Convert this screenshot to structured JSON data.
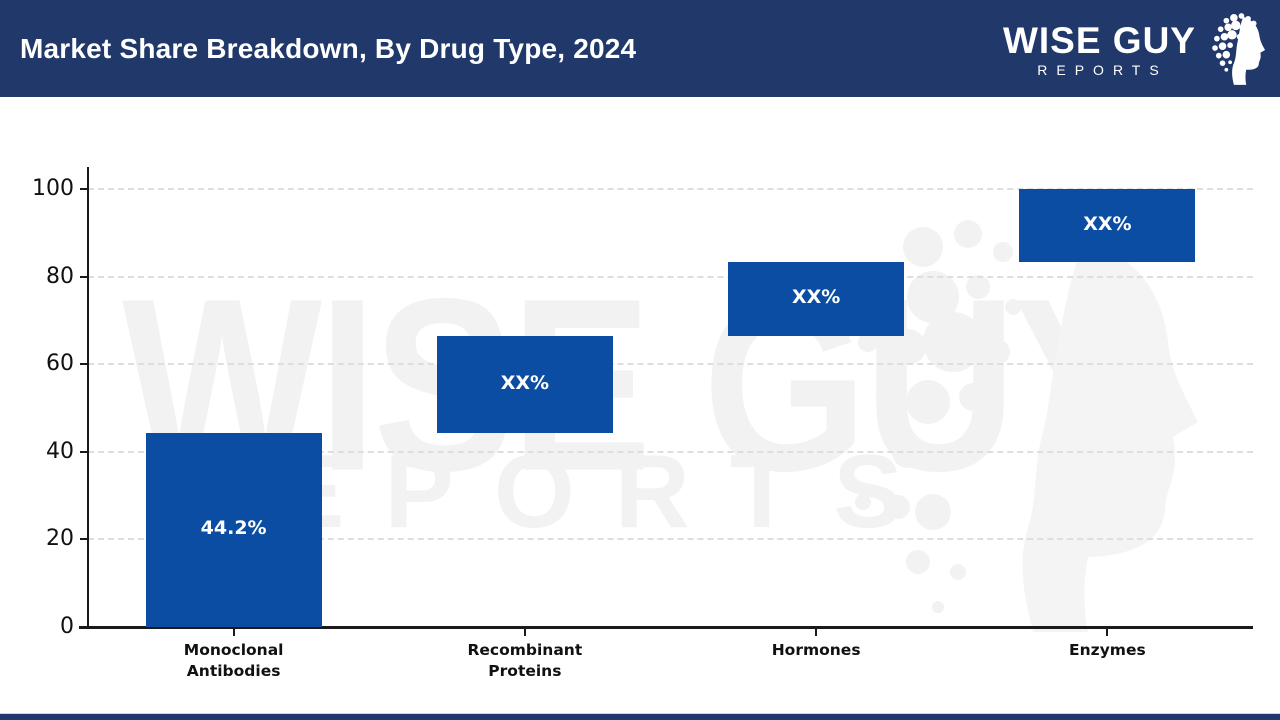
{
  "header": {
    "title": "Market Share Breakdown, By Drug Type, 2024",
    "logo": {
      "name": "WISE GUY",
      "sub": "REPORTS"
    }
  },
  "watermark": {
    "line1": "WISE GUY",
    "line2": "REPORTS"
  },
  "colors": {
    "header_bg": "#21386B",
    "footer_bg": "#21386B",
    "bar": "#0B4DA2",
    "bar_label": "#FFFFFF",
    "grid": "#DEDEDE",
    "axis": "#1A1A1A",
    "watermark": "#F2F2F2"
  },
  "chart_data": {
    "type": "bar",
    "subtype": "waterfall",
    "title": "Market Share Breakdown, By Drug Type, 2024",
    "unit": "%",
    "categories": [
      "Monoclonal Antibodies",
      "Recombinant Proteins",
      "Hormones",
      "Enzymes"
    ],
    "categories_display": [
      "Monoclonal\nAntibodies",
      "Recombinant\nProteins",
      "Hormones",
      "Enzymes"
    ],
    "bars": [
      {
        "category": "Monoclonal Antibodies",
        "start": 0,
        "end": 44.2,
        "label": "44.2%"
      },
      {
        "category": "Recombinant Proteins",
        "start": 44.2,
        "end": 66.5,
        "label": "XX%"
      },
      {
        "category": "Hormones",
        "start": 66.5,
        "end": 83.3,
        "label": "XX%"
      },
      {
        "category": "Enzymes",
        "start": 83.3,
        "end": 100,
        "label": "XX%"
      }
    ],
    "ylim": [
      0,
      105
    ],
    "yticks": [
      0,
      20,
      40,
      60,
      80,
      100
    ],
    "grid": true,
    "legend": false
  }
}
